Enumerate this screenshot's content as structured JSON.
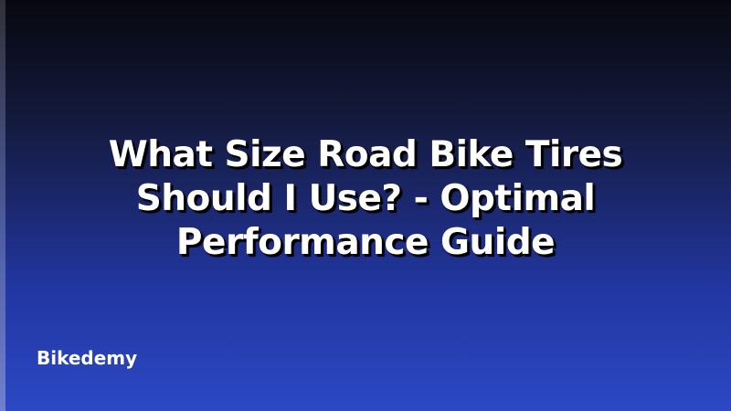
{
  "title": "What Size Road Bike Tires Should I Use? - Optimal Performance Guide",
  "brand": "Bikedemy",
  "colors": {
    "gradient_top": "#07080f",
    "gradient_bottom": "#2c48c4",
    "text": "#ffffff"
  }
}
